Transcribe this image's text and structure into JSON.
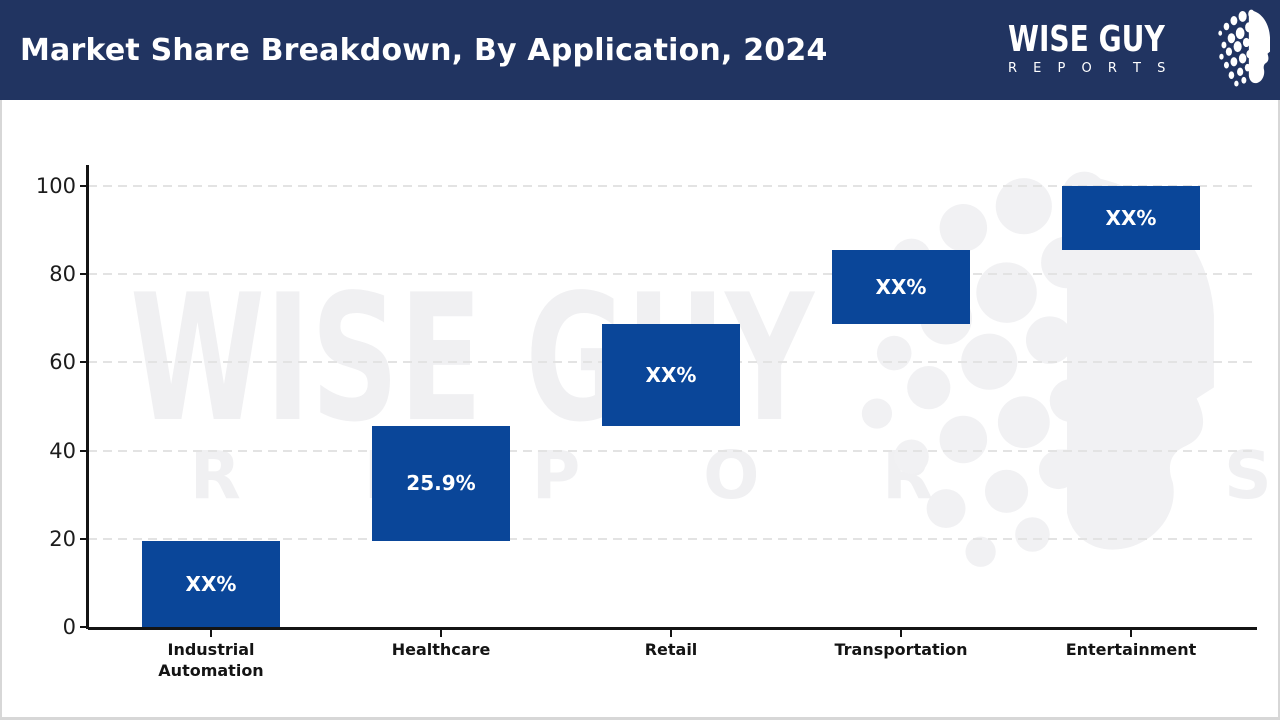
{
  "header": {
    "title": "Market Share Breakdown, By Application, 2024",
    "bg_color": "#213461",
    "logo": {
      "line1": "WISE GUY",
      "line2": "R E P O R T S"
    }
  },
  "watermark": {
    "line1": "WISE GUY",
    "line2": "R E P O R T S"
  },
  "chart_data": {
    "type": "bar",
    "subtype": "floating-bar waterfall; segments stack cumulatively from 0 to 100%",
    "title": "Market Share Breakdown, By Application, 2024",
    "categories": [
      "Industrial Automation",
      "Healthcare",
      "Retail",
      "Transportation",
      "Entertainment"
    ],
    "bars": [
      {
        "category": "Industrial Automation",
        "start": 0,
        "end": 19.6,
        "value": 19.6,
        "label": "XX%"
      },
      {
        "category": "Healthcare",
        "start": 19.6,
        "end": 45.5,
        "value": 25.9,
        "label": "25.9%"
      },
      {
        "category": "Retail",
        "start": 45.5,
        "end": 68.6,
        "value": 23.1,
        "label": "XX%"
      },
      {
        "category": "Transportation",
        "start": 68.6,
        "end": 85.5,
        "value": 16.9,
        "label": "XX%"
      },
      {
        "category": "Entertainment",
        "start": 85.5,
        "end": 100,
        "value": 14.5,
        "label": "XX%"
      }
    ],
    "xlabel": "",
    "ylabel": "",
    "ylim": [
      0,
      100
    ],
    "yticks": [
      0,
      20,
      40,
      60,
      80,
      100
    ],
    "grid": "horizontal dashed light-gray",
    "legend": "none",
    "bar_color": "#0A4699",
    "bar_label_color": "#FFFFFF",
    "axis_color": "#141414"
  }
}
